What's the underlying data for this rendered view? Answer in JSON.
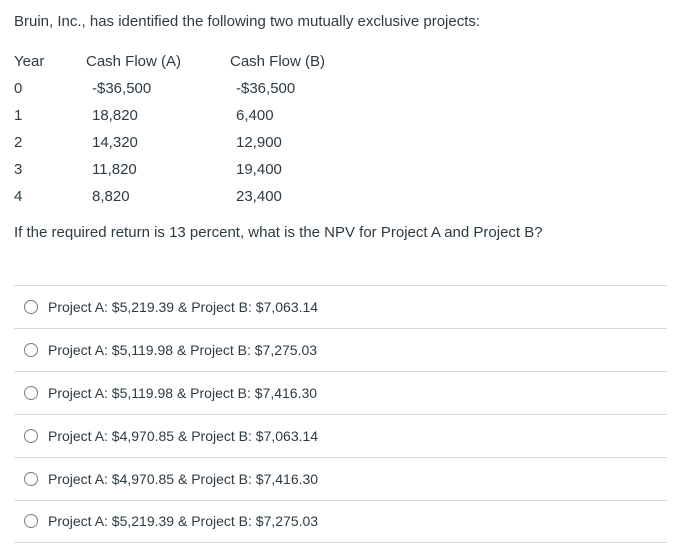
{
  "question": {
    "intro": "Bruin, Inc., has identified the following two mutually exclusive projects:",
    "prompt": "If the required return is 13 percent, what is the NPV for Project A and Project B?"
  },
  "table": {
    "headers": [
      "Year",
      "Cash Flow (A)",
      "Cash Flow (B)"
    ],
    "rows": [
      [
        "0",
        "-$36,500",
        "-$36,500"
      ],
      [
        "1",
        "18,820",
        "6,400"
      ],
      [
        "2",
        "14,320",
        "12,900"
      ],
      [
        "3",
        "11,820",
        "19,400"
      ],
      [
        "4",
        "8,820",
        "23,400"
      ]
    ]
  },
  "options": [
    "Project A: $5,219.39 & Project B: $7,063.14",
    "Project A: $5,119.98 & Project B: $7,275.03",
    "Project A: $5,119.98 & Project B: $7,416.30",
    "Project A: $4,970.85 & Project B: $7,063.14",
    "Project A: $4,970.85 & Project B: $7,416.30",
    "Project A: $5,219.39 & Project B: $7,275.03"
  ],
  "colors": {
    "text": "#2d3b45",
    "divider": "#d8d8d8",
    "radio_border": "#7c7c7c"
  }
}
